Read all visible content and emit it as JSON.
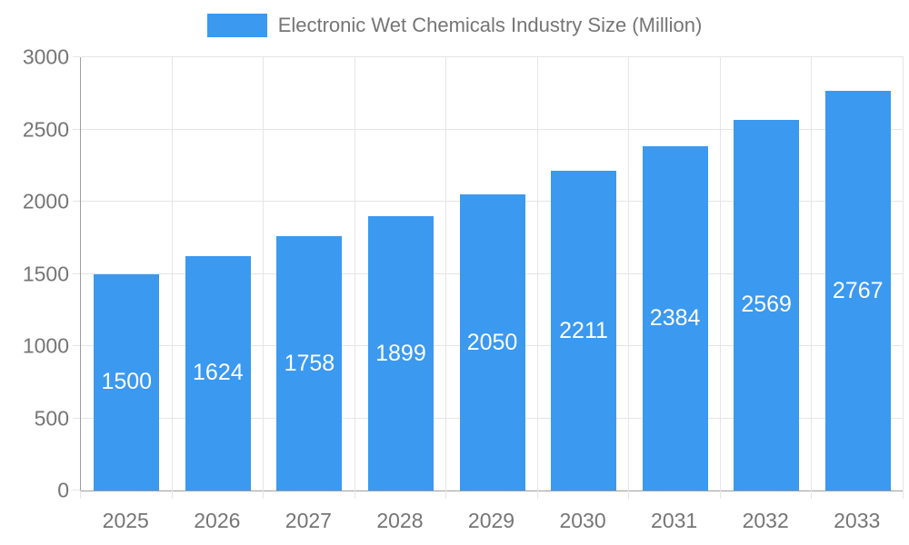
{
  "chart_data": {
    "type": "bar",
    "title": "Electronic Wet Chemicals Industry Size (Million)",
    "categories": [
      "2025",
      "2026",
      "2027",
      "2028",
      "2029",
      "2030",
      "2031",
      "2032",
      "2033"
    ],
    "values": [
      1500,
      1624,
      1758,
      1899,
      2050,
      2211,
      2384,
      2569,
      2767
    ],
    "xlabel": "",
    "ylabel": "",
    "ylim": [
      0,
      3000
    ],
    "yticks": [
      0,
      500,
      1000,
      1500,
      2000,
      2500,
      3000
    ],
    "grid": true,
    "bar_value_labels_visible": true,
    "legend": {
      "position": "top",
      "label": "Electronic Wet Chemicals Industry Size (Million)"
    },
    "colors": {
      "bar": "#3B99F0",
      "label_text": "#FFFFFF",
      "axis_text": "#757575",
      "gridline": "#E5E5E5",
      "axis_line": "#9E9E9E"
    }
  }
}
